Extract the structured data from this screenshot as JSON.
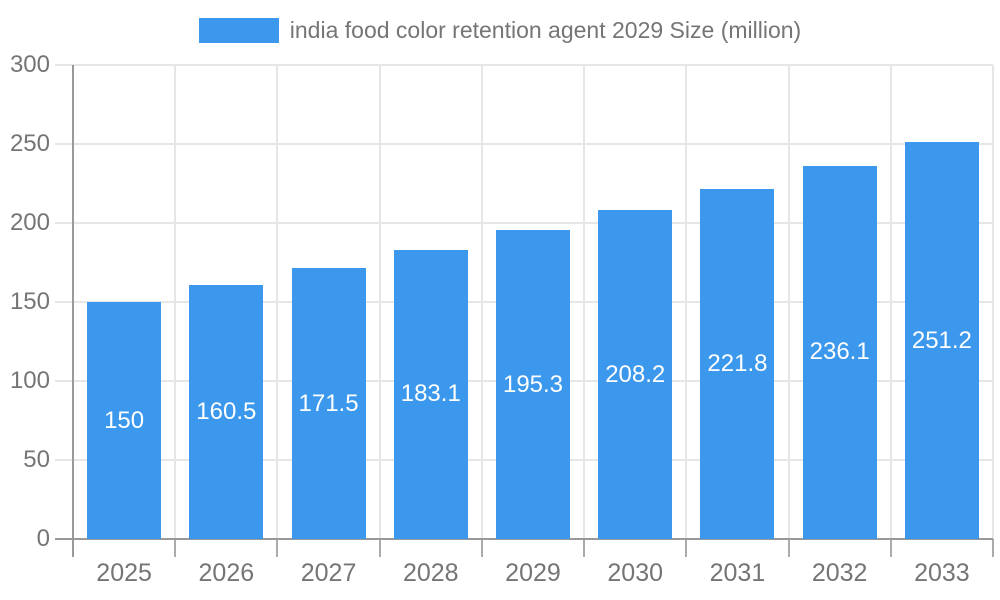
{
  "legend": {
    "label": "india food color retention agent 2029 Size (million)",
    "swatch_color": "#3b98ec"
  },
  "chart_data": {
    "type": "bar",
    "title": "india food color retention agent 2029 Size (million)",
    "categories": [
      "2025",
      "2026",
      "2027",
      "2028",
      "2029",
      "2030",
      "2031",
      "2032",
      "2033"
    ],
    "values": [
      150,
      160.5,
      171.5,
      183.1,
      195.3,
      208.2,
      221.8,
      236.1,
      251.2
    ],
    "xlabel": "",
    "ylabel": "",
    "ylim": [
      0,
      300
    ],
    "ytick_step": 50,
    "yticks": [
      0,
      50,
      100,
      150,
      200,
      250,
      300
    ],
    "grid": true,
    "legend_position": "top",
    "value_labels": "inside-center",
    "colors": {
      "bar": "#3b98ec",
      "value_label": "#ffffff",
      "axis": "#999999",
      "grid": "#e6e6e6",
      "tick_label": "#757575"
    }
  }
}
